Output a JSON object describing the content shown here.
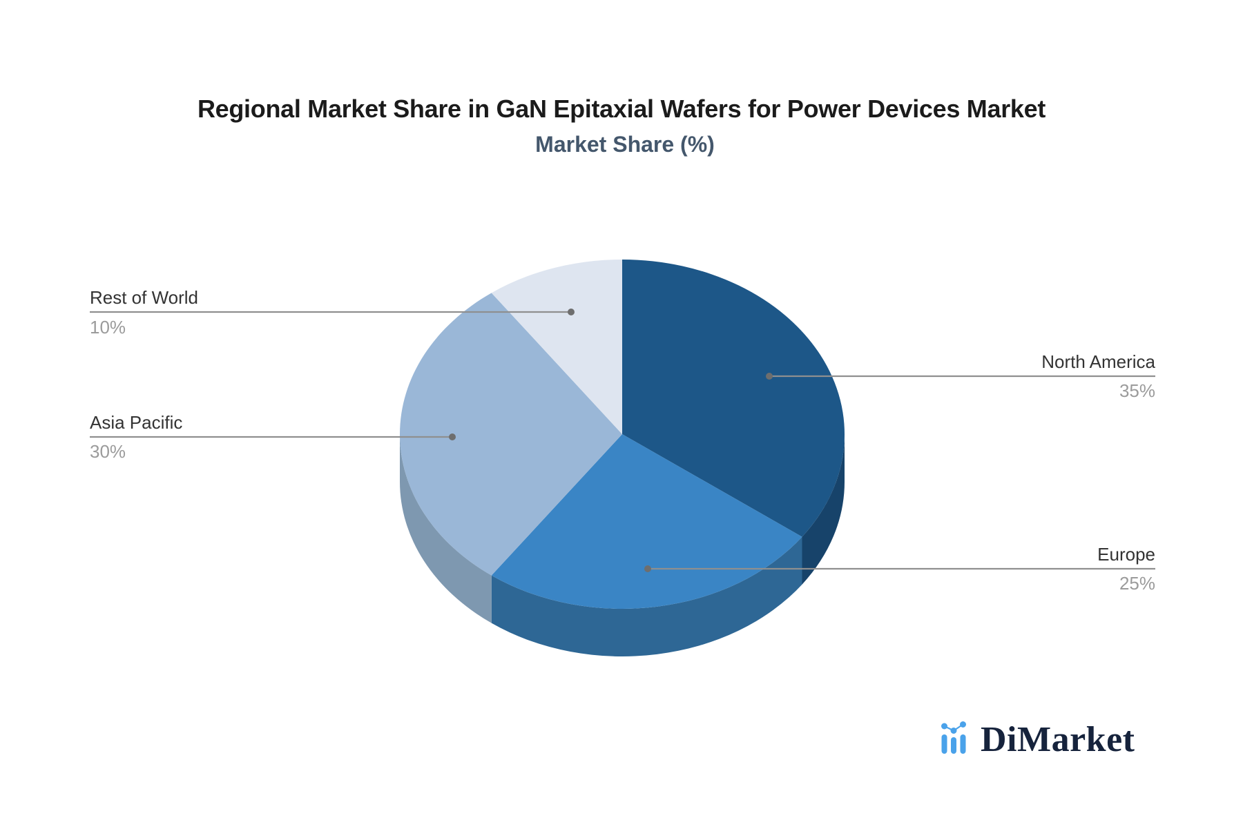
{
  "chart_data": {
    "type": "pie",
    "title": "Regional Market Share in GaN Epitaxial Wafers for Power Devices Market",
    "subtitle": "Market Share (%)",
    "unit": "%",
    "start_angle_deg": -90,
    "direction": "clockwise",
    "effect": "3d-depth",
    "slices": [
      {
        "label": "North America",
        "value": 35,
        "pct_label": "35%",
        "color": "#1d5788",
        "side_color": "#17436a"
      },
      {
        "label": "Europe",
        "value": 25,
        "pct_label": "25%",
        "color": "#3a85c5",
        "side_color": "#2e6795"
      },
      {
        "label": "Asia Pacific",
        "value": 30,
        "pct_label": "30%",
        "color": "#9ab7d7",
        "side_color": "#7e98b0"
      },
      {
        "label": "Rest of World",
        "value": 10,
        "pct_label": "10%",
        "color": "#dee5f0",
        "side_color": "#c3cfde"
      }
    ],
    "legend_position": "callout-labels",
    "grid": false
  },
  "branding": {
    "logo_text": "DiMarket",
    "logo_icon": "bar-chart-trend-icon",
    "logo_icon_color": "#4aa2ea"
  }
}
